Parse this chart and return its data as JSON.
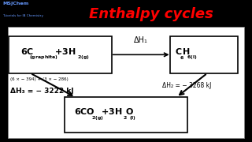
{
  "title": "Enthalpy cycles",
  "title_color": "#FF0000",
  "title_fontsize": 13,
  "bg_color": "#000000",
  "panel_bg": "#FFFFFF",
  "logo_line1": "MSJChem",
  "logo_line2": "Tutorials for IB Chemistry",
  "logo_color": "#6699FF",
  "dh1_label": "ΔH₁",
  "dh2_label": "ΔH₂ = − 3268 kJ",
  "dh3_label": "ΔH₃ = − 3222 kJ",
  "dh3_calc": "(6 × − 394) + (3 × − 286)",
  "figw": 3.2,
  "figh": 1.8,
  "dpi": 100
}
